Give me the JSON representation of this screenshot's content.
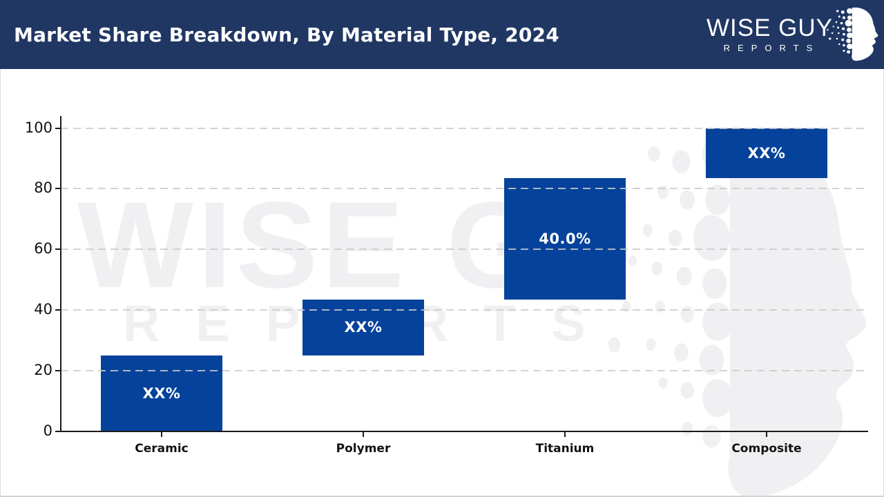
{
  "header": {
    "title": "Market Share Breakdown, By Material Type, 2024",
    "logo": {
      "line1": "WISE GUY",
      "line2": "REPORTS"
    }
  },
  "watermark": {
    "line1": "WISE GU",
    "line2": "REPORTS"
  },
  "colors": {
    "header_bg": "#203764",
    "bar": "#05429b",
    "axis": "#1a1a1a",
    "gridline": "#cbcbcb",
    "watermark": "#f0f0f2",
    "bar_label_text": "#ffffff",
    "title_text": "#ffffff"
  },
  "chart_data": {
    "type": "bar",
    "subtype": "floating-waterfall",
    "title": "Market Share Breakdown, By Material Type, 2024",
    "xlabel": "",
    "ylabel": "",
    "categories": [
      "Ceramic",
      "Polymer",
      "Titanium",
      "Composite"
    ],
    "bars": [
      {
        "category": "Ceramic",
        "start": 0,
        "end": 25,
        "value": 25,
        "value_label": "XX%"
      },
      {
        "category": "Polymer",
        "start": 25,
        "end": 43.5,
        "value": 18.5,
        "value_label": "XX%"
      },
      {
        "category": "Titanium",
        "start": 43.5,
        "end": 83.5,
        "value": 40.0,
        "value_label": "40.0%"
      },
      {
        "category": "Composite",
        "start": 83.5,
        "end": 100,
        "value": 16.5,
        "value_label": "XX%"
      }
    ],
    "yticks": [
      0,
      20,
      40,
      60,
      80,
      100
    ],
    "ylim": [
      0,
      104
    ],
    "grid": "dashed-horizontal-over-bars",
    "legend": "none",
    "bar_color": "#05429b"
  }
}
